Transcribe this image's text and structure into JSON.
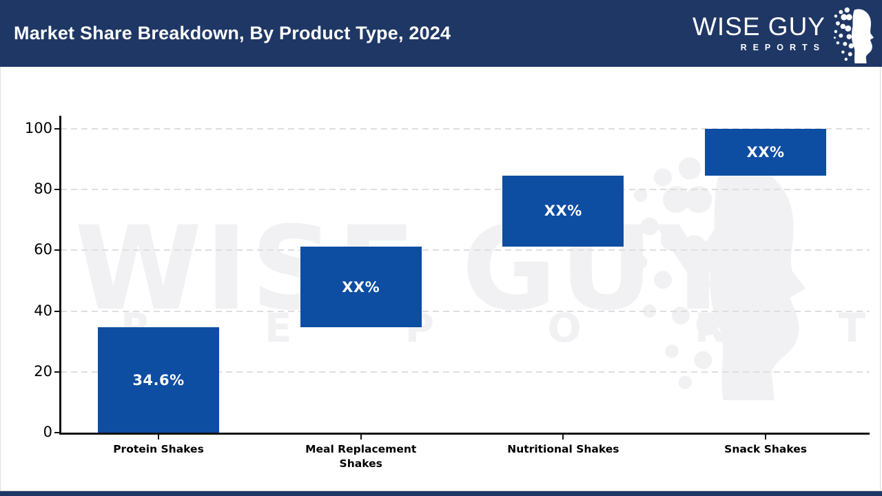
{
  "header": {
    "title": "Market Share Breakdown, By Product Type, 2024",
    "bg_color": "#1f3765",
    "logo": {
      "line1": "WISE GUY",
      "line2": "REPORTS"
    }
  },
  "watermark": {
    "line1": "WISE GUY",
    "line2": "R E P O R T S"
  },
  "chart_data": {
    "type": "bar",
    "variant": "waterfall",
    "title": "Market Share Breakdown, By Product Type, 2024",
    "categories": [
      "Protein Shakes",
      "Meal Replacement Shakes",
      "Nutritional Shakes",
      "Snack Shakes"
    ],
    "segments": [
      {
        "category": "Protein Shakes",
        "start": 0,
        "end": 34.6,
        "label": "34.6%"
      },
      {
        "category": "Meal Replacement Shakes",
        "start": 34.6,
        "end": 61.3,
        "label": "XX%"
      },
      {
        "category": "Nutritional Shakes",
        "start": 61.3,
        "end": 84.6,
        "label": "XX%"
      },
      {
        "category": "Snack Shakes",
        "start": 84.6,
        "end": 100,
        "label": "XX%"
      }
    ],
    "bar_labels": [
      "34.6%",
      "XX%",
      "XX%",
      "XX%"
    ],
    "y_ticks": [
      0,
      20,
      40,
      60,
      80,
      100
    ],
    "ylim": [
      0,
      104
    ],
    "xlabel": "",
    "ylabel": "",
    "grid": "horizontal-dashed",
    "legend": "none",
    "bar_color": "#0d4da2",
    "bar_label_color": "#ffffff",
    "axis_color": "#111111",
    "gridline_color": "#dedede"
  }
}
